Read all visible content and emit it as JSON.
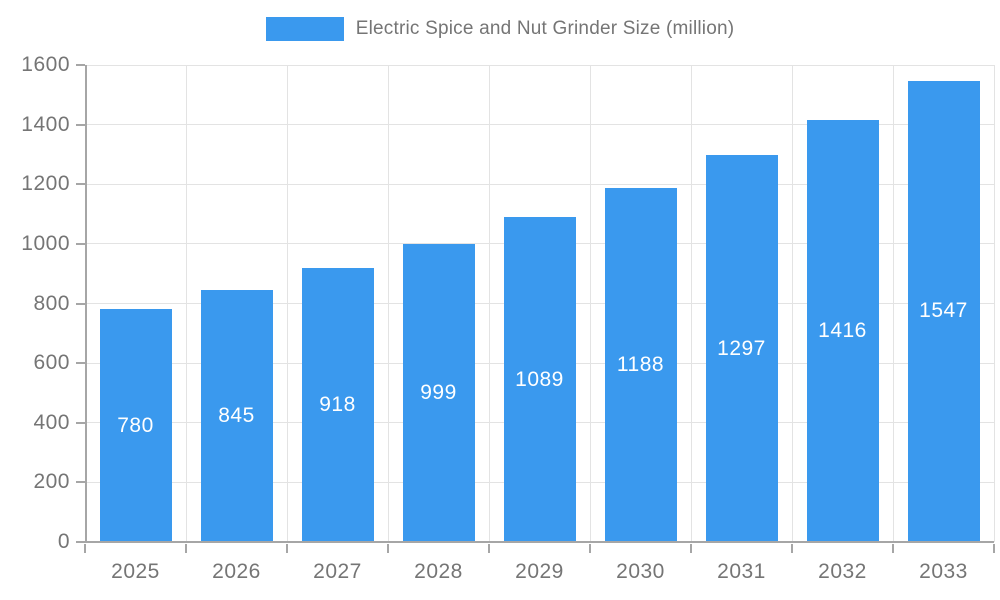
{
  "legend": {
    "label": "Electric Spice and Nut Grinder Size (million)"
  },
  "chart_data": {
    "type": "bar",
    "title": "Electric Spice and Nut Grinder Size (million)",
    "categories": [
      "2025",
      "2026",
      "2027",
      "2028",
      "2029",
      "2030",
      "2031",
      "2032",
      "2033"
    ],
    "values": [
      780,
      845,
      918,
      999,
      1089,
      1188,
      1297,
      1416,
      1547
    ],
    "value_labels": [
      "780",
      "845",
      "918",
      "999",
      "1089",
      "1188",
      "1297",
      "1416",
      "1547"
    ],
    "xlabel": "",
    "ylabel": "",
    "ylim": [
      0,
      1600
    ],
    "ytick_step": 200,
    "ytick_labels": [
      "0",
      "200",
      "400",
      "600",
      "800",
      "1000",
      "1200",
      "1400",
      "1600"
    ],
    "grid": "on",
    "legend_position": "top",
    "colors": {
      "bar": "#3A99EE",
      "bar_label": "#ffffff",
      "axis_text": "#757575",
      "axis_line": "#a6a6a6",
      "gridline": "#e3e3e3",
      "background": "#ffffff"
    }
  }
}
